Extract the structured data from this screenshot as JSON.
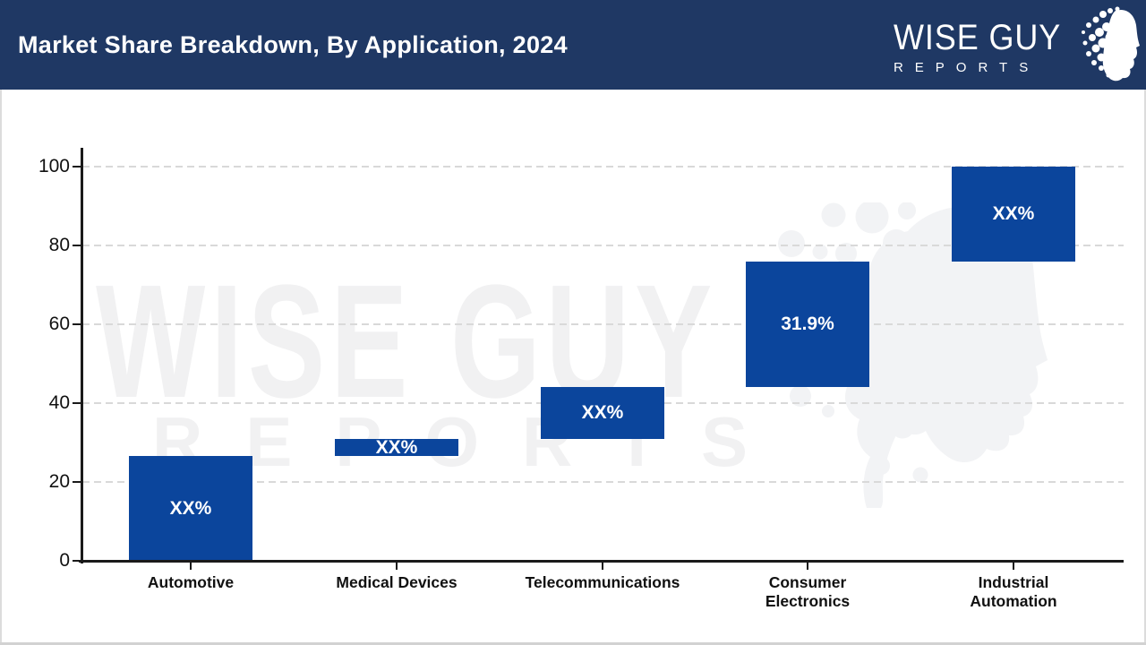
{
  "header": {
    "title": "Market Share Breakdown, By Application, 2024",
    "logo_line1": "WISE GUY",
    "logo_line2": "REPORTS",
    "bg_color": "#1f3864"
  },
  "watermark": {
    "line1": "WISE GUY",
    "line2": "REPORTS"
  },
  "chart_data": {
    "type": "bar",
    "subtype": "floating-waterfall",
    "title": "Market Share Breakdown, By Application, 2024",
    "categories": [
      "Automotive",
      "Medical Devices",
      "Telecommunications",
      "Consumer Electronics",
      "Industrial Automation"
    ],
    "category_label_lines": [
      [
        "Automotive"
      ],
      [
        "Medical Devices"
      ],
      [
        "Telecommunications"
      ],
      [
        "Consumer",
        "Electronics"
      ],
      [
        "Industrial",
        "Automation"
      ]
    ],
    "series": [
      {
        "name": "Market Share (%)",
        "segments": [
          {
            "category": "Automotive",
            "start": 0,
            "end": 26.5,
            "label": "XX%"
          },
          {
            "category": "Medical Devices",
            "start": 26.5,
            "end": 31.0,
            "label": "XX%"
          },
          {
            "category": "Telecommunications",
            "start": 31.0,
            "end": 44.1,
            "label": "XX%"
          },
          {
            "category": "Consumer Electronics",
            "start": 44.1,
            "end": 76.0,
            "label": "31.9%"
          },
          {
            "category": "Industrial Automation",
            "start": 76.0,
            "end": 100,
            "label": "XX%"
          }
        ]
      }
    ],
    "ylim": [
      0,
      100
    ],
    "yticks": [
      "0",
      "20",
      "40",
      "60",
      "80",
      "100"
    ],
    "grid": "horizontal-dashed",
    "legend": "none",
    "bar_color": "#0b459c",
    "bar_label_color": "#ffffff",
    "axis_color": "#1a1a1a",
    "gridline_color": "#d9d9d9"
  }
}
